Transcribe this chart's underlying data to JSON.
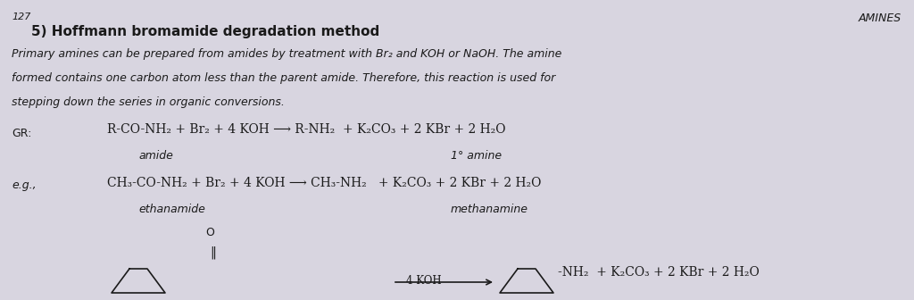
{
  "bg_color": "#d8d5e0",
  "title": "5) Hoffmann bromamide degradation method",
  "header_right": "AMINES",
  "page_num": "127",
  "body_text": "Primary amines can be prepared from amides by treatment with Br₂ and KOH or NaOH. The amine\nformed contains one carbon atom less than the parent amide. Therefore, this reaction is used for\nstepping down the series in organic conversions.",
  "gr_label": "GR:",
  "gr_equation": "R-CO-NH₂ + Br₂ + 4 KOH ⟶ R-NH₂  + K₂CO₃ + 2 KBr + 2 H₂O",
  "gr_amide": "amide",
  "gr_amine": "1° amine",
  "eg_label": "e.g.,",
  "eg_equation": "CH₃-CO-NH₂ + Br₂ + 4 KOH ⟶ CH₃-NH₂   + K₂CO₃ + 2 KBr + 2 H₂O",
  "eg_ethanamide": "ethanamide",
  "eg_methanamine": "methanamine",
  "bottom_right": "-NH₂  + K₂CO₃ + 2 KBr + 2 H₂O",
  "bottom_label_O": "O",
  "bottom_label_parallel": "‖",
  "title_fontsize": 11,
  "body_fontsize": 9,
  "eq_fontsize": 10,
  "label_fontsize": 9,
  "header_fontsize": 9
}
